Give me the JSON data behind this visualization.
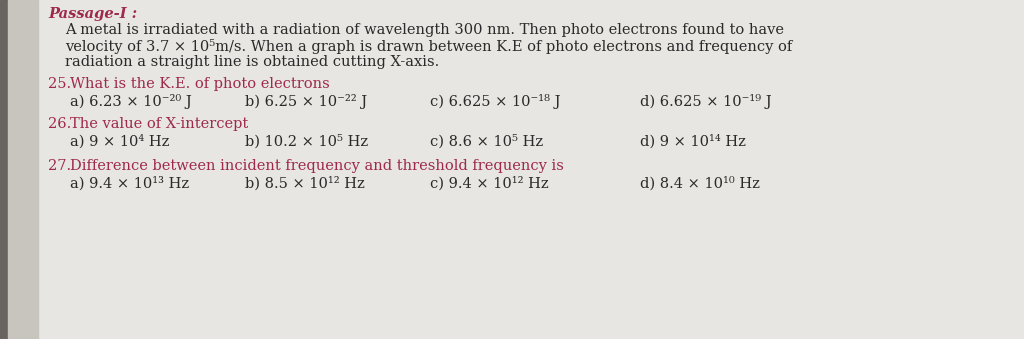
{
  "bg_color": "#e8e6e2",
  "left_strip_color": "#c8c4be",
  "far_left_color": "#b0aba4",
  "passage_label": "Passage-I :",
  "passage_text_line1": "A metal is irradiated with a radiation of wavelength 300 nm. Then photo electrons found to have",
  "passage_text_line2": "velocity of 3.7 × 10⁵m/s. When a graph is drawn between K.E of photo electrons and frequency of",
  "passage_text_line3": "radiation a straight line is obtained cutting X-axis.",
  "q25_label": "25.",
  "q25_text": "What is the K.E. of photo electrons",
  "q25_a": "a) 6.23 × 10⁻²⁰ J",
  "q25_b": "b) 6.25 × 10⁻²² J",
  "q25_c": "c) 6.625 × 10⁻¹⁸ J",
  "q25_d": "d) 6.625 × 10⁻¹⁹ J",
  "q26_label": "26.",
  "q26_text": "The value of X-intercept",
  "q26_a": "a) 9 × 10⁴ Hz",
  "q26_b": "b) 10.2 × 10⁵ Hz",
  "q26_c": "c) 8.6 × 10⁵ Hz",
  "q26_d": "d) 9 × 10¹⁴ Hz",
  "q27_label": "27.",
  "q27_text": "Difference between incident frequency and threshold frequency is",
  "q27_a": "a) 9.4 × 10¹³ Hz",
  "q27_b": "b) 8.5 × 10¹² Hz",
  "q27_c": "c) 9.4 × 10¹² Hz",
  "q27_d": "d) 8.4 × 10¹⁰ Hz",
  "red_color": "#9e2a4a",
  "dark_red_color": "#8b2040",
  "black_color": "#2a2a2a",
  "text_fontsize": 10.5,
  "question_fontsize": 10.5,
  "passage_fontsize": 10.5,
  "label_fontsize": 10.5
}
